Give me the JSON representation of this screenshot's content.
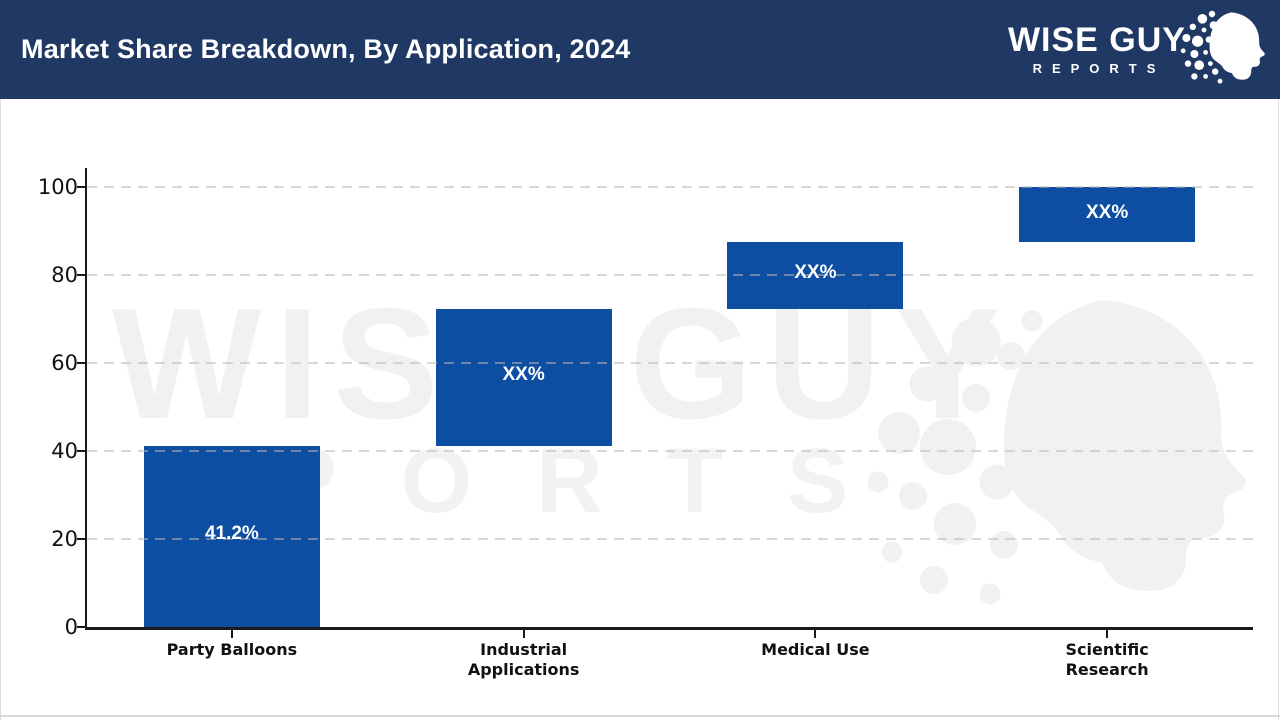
{
  "header": {
    "title": "Market Share Breakdown, By Application, 2024",
    "bg_color": "#1f3864",
    "logo": {
      "line1": "WISE GUY",
      "line2": "REPORTS"
    }
  },
  "watermark": {
    "line1": "WISE GUY",
    "line2": "EPORTS"
  },
  "chart_data": {
    "type": "bar",
    "subtype": "waterfall",
    "title": "Market Share Breakdown, By Application, 2024",
    "xlabel": "",
    "ylabel": "",
    "ylim": [
      0,
      100
    ],
    "yticks": [
      0,
      20,
      40,
      60,
      80,
      100
    ],
    "grid": "horizontal-dashed",
    "legend": "none",
    "bar_color": "#0d4da2",
    "label_color": "#ffffff",
    "categories": [
      "Party Balloons",
      "Industrial Applications",
      "Medical Use",
      "Scientific Research"
    ],
    "segments": [
      {
        "category": "Party Balloons",
        "start": 0,
        "end": 41.2,
        "label": "41.2%"
      },
      {
        "category": "Industrial Applications",
        "start": 41.2,
        "end": 72.3,
        "label": "XX%"
      },
      {
        "category": "Medical Use",
        "start": 72.3,
        "end": 87.5,
        "label": "XX%"
      },
      {
        "category": "Scientific Research",
        "start": 87.5,
        "end": 100,
        "label": "XX%"
      }
    ]
  }
}
